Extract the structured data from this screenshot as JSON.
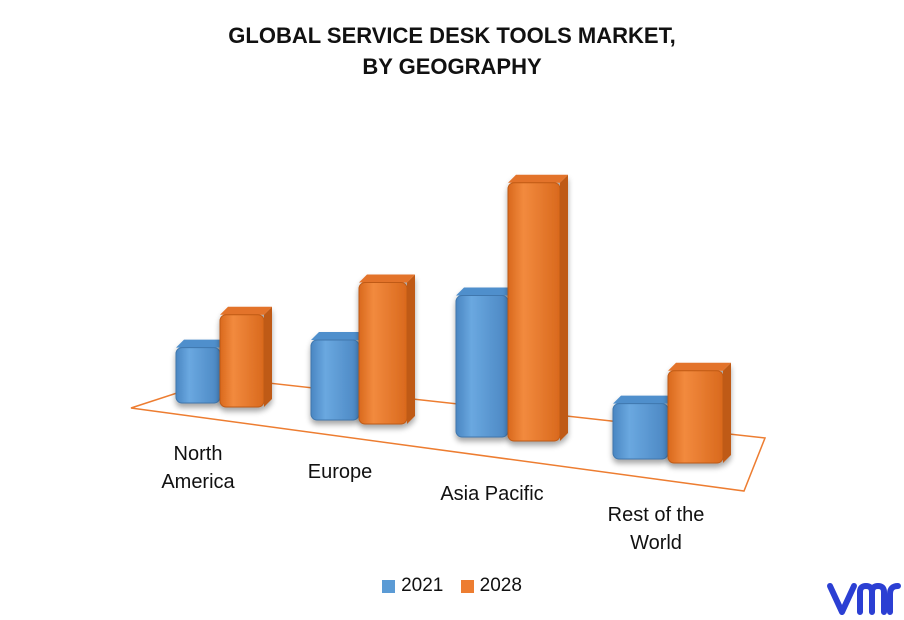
{
  "title_lines": [
    "GLOBAL SERVICE DESK TOOLS MARKET,",
    "BY GEOGRAPHY"
  ],
  "chart_data": {
    "type": "bar",
    "title": "GLOBAL SERVICE DESK TOOLS MARKET, BY GEOGRAPHY",
    "categories": [
      "North America",
      "Europe",
      "Asia Pacific",
      "Rest of the World"
    ],
    "category_label_lines": [
      [
        "North",
        "America"
      ],
      [
        "Europe"
      ],
      [
        "Asia Pacific"
      ],
      [
        "Rest of the",
        "World"
      ]
    ],
    "series": [
      {
        "name": "2021",
        "values": [
          4.5,
          6.5,
          11.5,
          4.5
        ]
      },
      {
        "name": "2028",
        "values": [
          7.5,
          11.5,
          21.0,
          7.5
        ]
      }
    ],
    "grid": false,
    "legend": "bottom",
    "colors": {
      "2021": "#5b9bd5",
      "2028": "#ed7d31",
      "floor": "#ed7d31"
    }
  },
  "logo": {
    "text": "vmr",
    "color": "#2b3fd3"
  }
}
